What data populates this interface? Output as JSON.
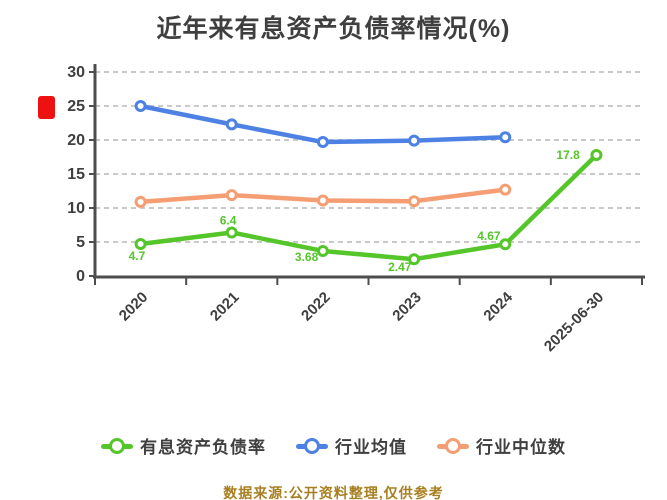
{
  "title": "近年来有息资产负债率情况(%)",
  "footer_note": "数据来源:公开资料整理,仅供参考",
  "logo": {
    "name": "red-logo-mark",
    "color": "#ee1111"
  },
  "colors": {
    "axis": "#4d4d4d",
    "grid": "#c9c9c9",
    "text": "#3f3f3f",
    "green": "#55c62a",
    "blue": "#4d82e4",
    "orange": "#f59d73"
  },
  "legend": {
    "items": [
      {
        "label": "有息资产负债率",
        "color": "#55c62a"
      },
      {
        "label": "行业均值",
        "color": "#4d82e4"
      },
      {
        "label": "行业中位数",
        "color": "#f59d73"
      }
    ]
  },
  "chart_data": {
    "type": "line",
    "title": "近年来有息资产负债率情况(%)",
    "xlabel": "",
    "ylabel": "",
    "ylim": [
      0,
      30
    ],
    "yticks": [
      0,
      5,
      10,
      15,
      20,
      25,
      30
    ],
    "grid": "dashed-horizontal",
    "legend_position": "bottom",
    "categories": [
      "2020",
      "2021",
      "2022",
      "2023",
      "2024",
      "2025-06-30"
    ],
    "series": [
      {
        "name": "有息资产负债率",
        "color": "#55c62a",
        "values": [
          4.7,
          6.4,
          3.68,
          2.47,
          4.67,
          17.8
        ],
        "point_labels": [
          "4.7",
          "6.4",
          "3.68",
          "2.47",
          "4.67",
          "17.8"
        ],
        "label_offsets": [
          [
            -12,
            16
          ],
          [
            -12,
            -8
          ],
          [
            -28,
            10
          ],
          [
            -26,
            12
          ],
          [
            -28,
            -4
          ],
          [
            -40,
            4
          ]
        ]
      },
      {
        "name": "行业均值",
        "color": "#4d82e4",
        "values": [
          25.0,
          22.3,
          19.7,
          19.9,
          20.4,
          null
        ],
        "point_labels": [],
        "label_offsets": []
      },
      {
        "name": "行业中位数",
        "color": "#f59d73",
        "values": [
          10.9,
          11.9,
          11.1,
          11.0,
          12.7,
          null
        ],
        "point_labels": [],
        "label_offsets": []
      }
    ]
  }
}
